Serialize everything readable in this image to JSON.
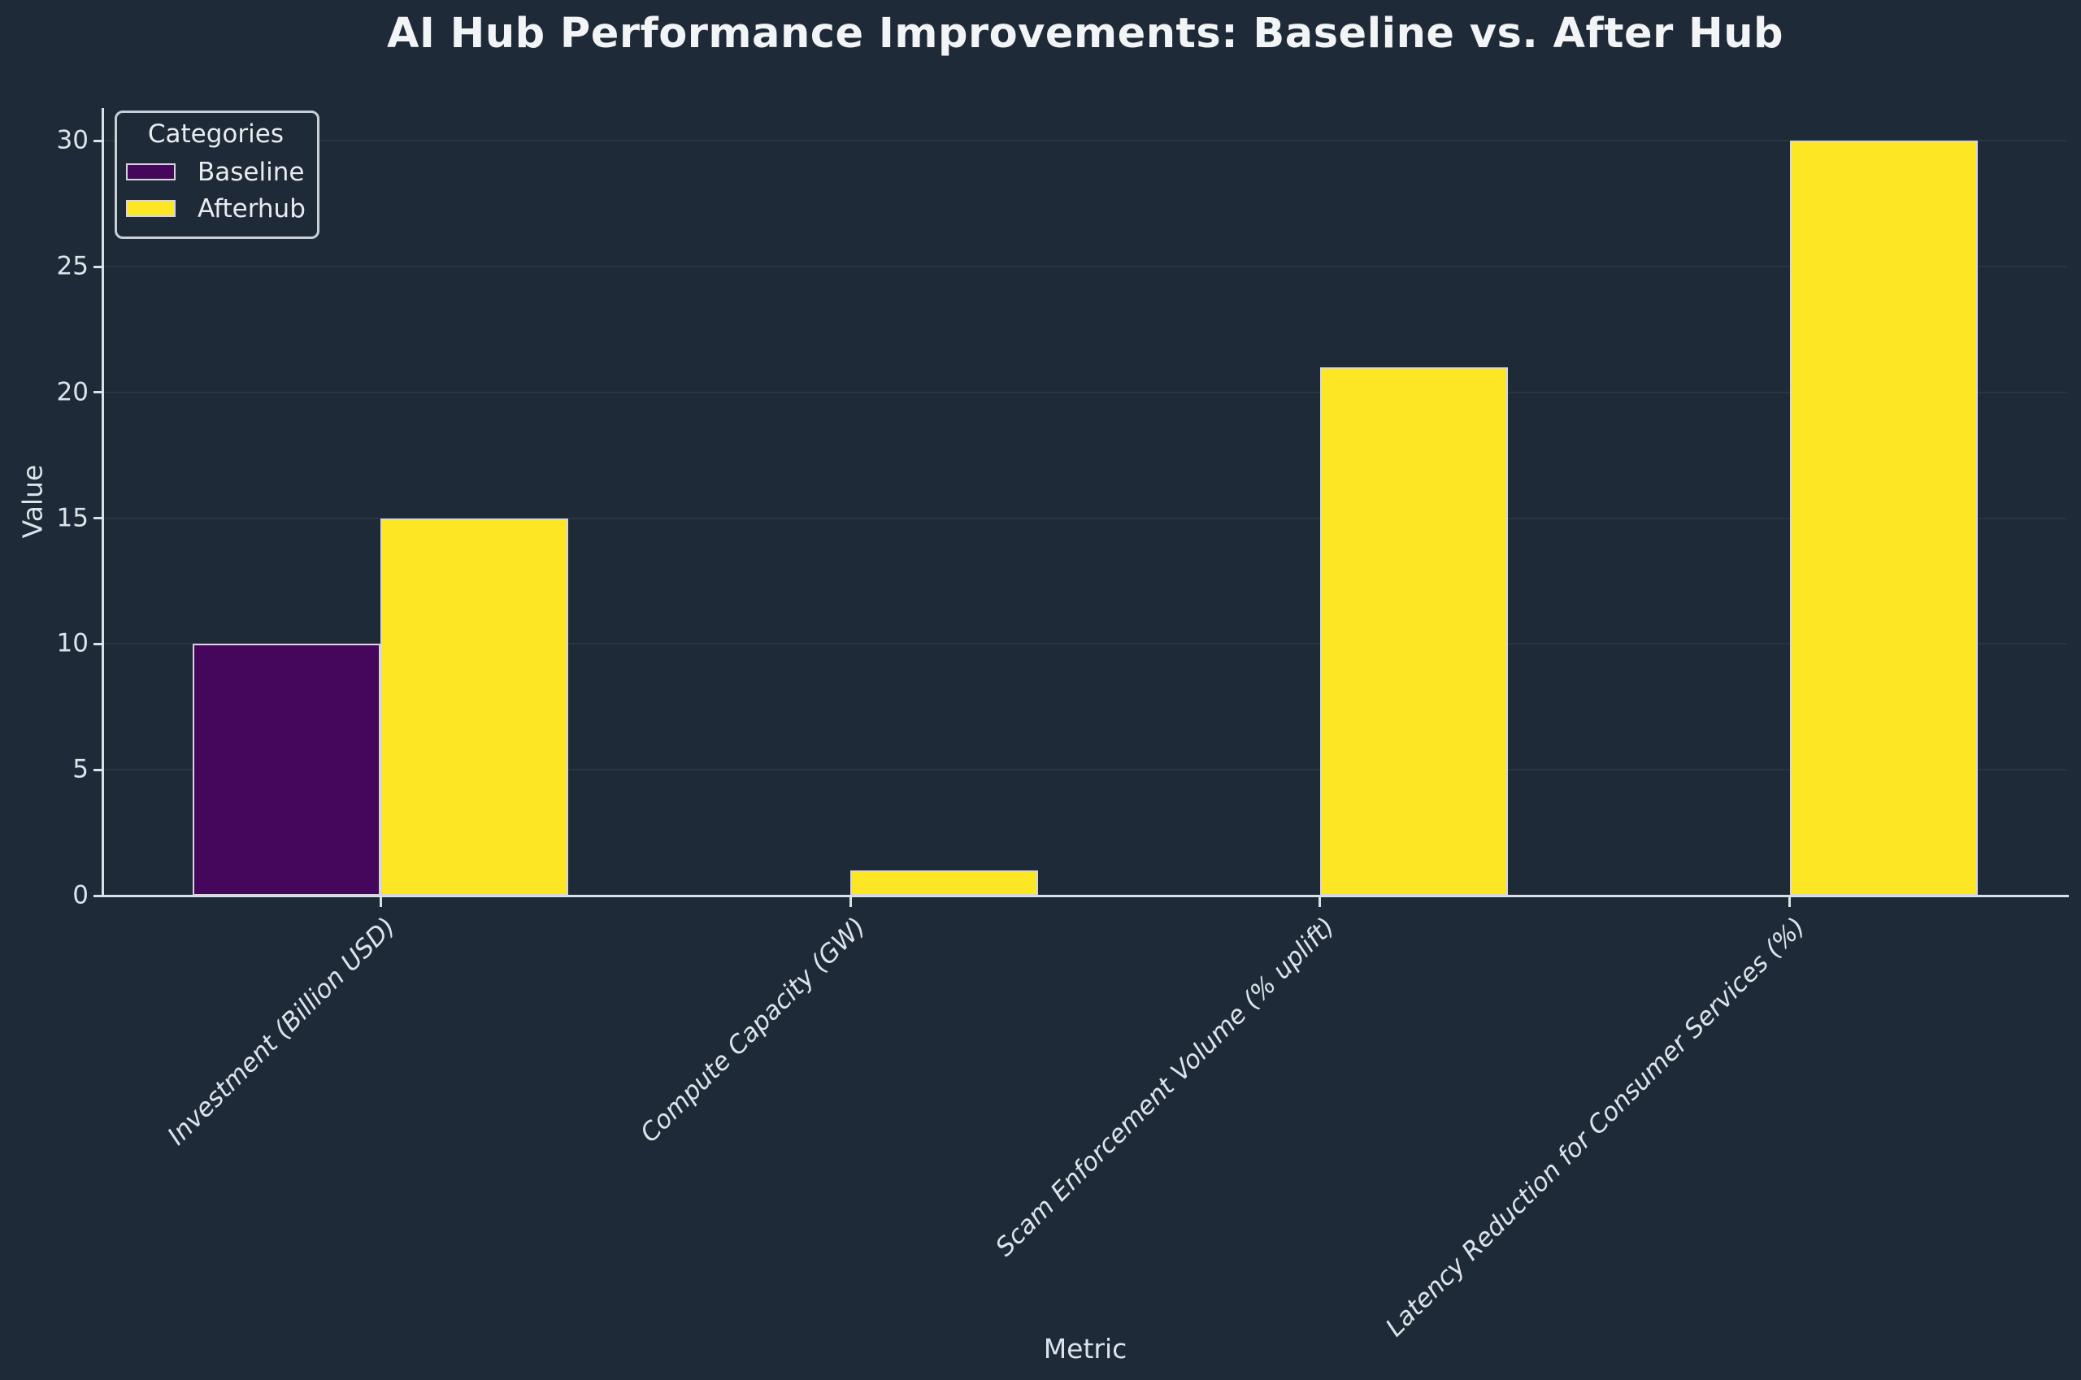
{
  "colors": {
    "background": "#1f2a38",
    "title_text": "#f2f4f6",
    "tick_text": "#dce3ea",
    "spine": "#dbe1e8",
    "bar_edge": "#d6d6da",
    "gridline": "rgba(255,255,255,0.055)",
    "baseline_fill": "#45075c",
    "afterhub_fill": "#fde725"
  },
  "chart_data": {
    "type": "bar",
    "title": "AI Hub Performance Improvements: Baseline vs. After Hub",
    "xlabel": "Metric",
    "ylabel": "Value",
    "categories": [
      "Investment (Billion USD)",
      "Compute Capacity (GW)",
      "Scam Enforcement Volume (% uplift)",
      "Latency Reduction for Consumer Services (%)"
    ],
    "series": [
      {
        "name": "Baseline",
        "color": "#45075c",
        "values": [
          10,
          0,
          0,
          0
        ]
      },
      {
        "name": "Afterhub",
        "color": "#fde725",
        "values": [
          15,
          1,
          21,
          30
        ]
      }
    ],
    "legend": {
      "title": "Categories",
      "position": "upper left"
    },
    "yticks": [
      0,
      5,
      10,
      15,
      20,
      25,
      30
    ],
    "ylim": [
      0,
      31.3
    ],
    "grid": {
      "horizontal": true,
      "vertical": false
    },
    "bar_group_width": 0.8,
    "x_tick_label_rotation_deg": 45
  }
}
